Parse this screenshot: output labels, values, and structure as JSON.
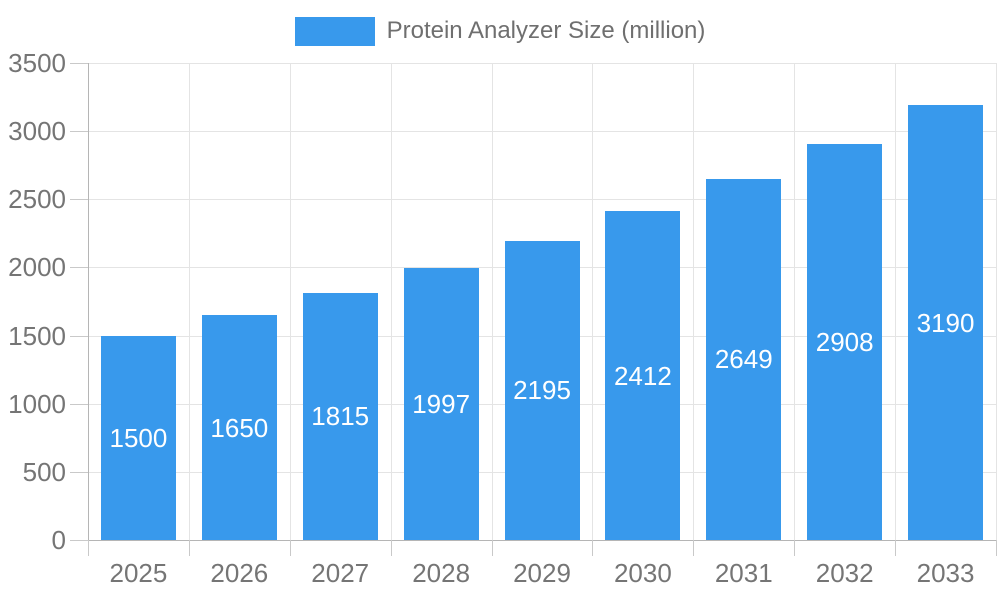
{
  "chart_data": {
    "type": "bar",
    "title": "Protein Analyzer Size (million)",
    "legend": {
      "position": "top",
      "label": "Protein Analyzer Size (million)",
      "swatch_color": "#3899ec"
    },
    "categories": [
      "2025",
      "2026",
      "2027",
      "2028",
      "2029",
      "2030",
      "2031",
      "2032",
      "2033"
    ],
    "series": [
      {
        "name": "Protein Analyzer Size (million)",
        "values": [
          1500,
          1650,
          1815,
          1997,
          2195,
          2412,
          2649,
          2908,
          3190
        ]
      }
    ],
    "data_labels": [
      "1500",
      "1650",
      "1815",
      "1997",
      "2195",
      "2412",
      "2649",
      "2908",
      "3190"
    ],
    "xlabel": "",
    "ylabel": "",
    "ylim": [
      0,
      3500
    ],
    "yticks": [
      0,
      500,
      1000,
      1500,
      2000,
      2500,
      3000,
      3500
    ],
    "grid": true,
    "colors": {
      "bar": "#3899ec",
      "bar_label": "#ffffff",
      "axis_text": "#757575",
      "legend_text": "#6f6f6f",
      "grid_line": "#e4e4e4",
      "axis_line": "#b5b5b5",
      "tick_mark": "#c9c9c9",
      "background": "#ffffff"
    }
  }
}
